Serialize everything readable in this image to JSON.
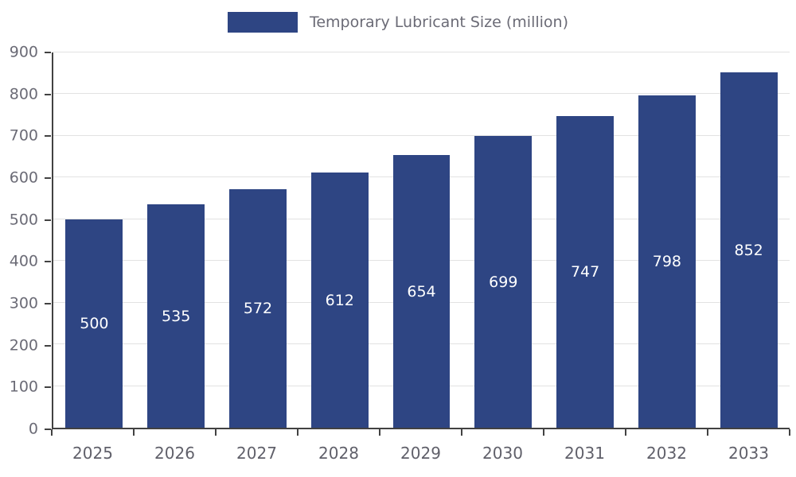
{
  "legend": {
    "label": "Temporary Lubricant Size (million)"
  },
  "colors": {
    "bar": "#2e4583",
    "grid": "#e2e2e2",
    "axis": "#424242",
    "tick_text": "#6b6b76",
    "value_text": "#ffffff",
    "background": "#ffffff"
  },
  "chart_data": {
    "type": "bar",
    "title": "Temporary Lubricant Size (million)",
    "categories": [
      "2025",
      "2026",
      "2027",
      "2028",
      "2029",
      "2030",
      "2031",
      "2032",
      "2033"
    ],
    "values": [
      500,
      535,
      572,
      612,
      654,
      699,
      747,
      798,
      852
    ],
    "xlabel": "",
    "ylabel": "",
    "ylim": [
      0,
      900
    ],
    "yticks": [
      0,
      100,
      200,
      300,
      400,
      500,
      600,
      700,
      800,
      900
    ],
    "grid": true,
    "legend_position": "top",
    "value_labels": "inside-center"
  }
}
